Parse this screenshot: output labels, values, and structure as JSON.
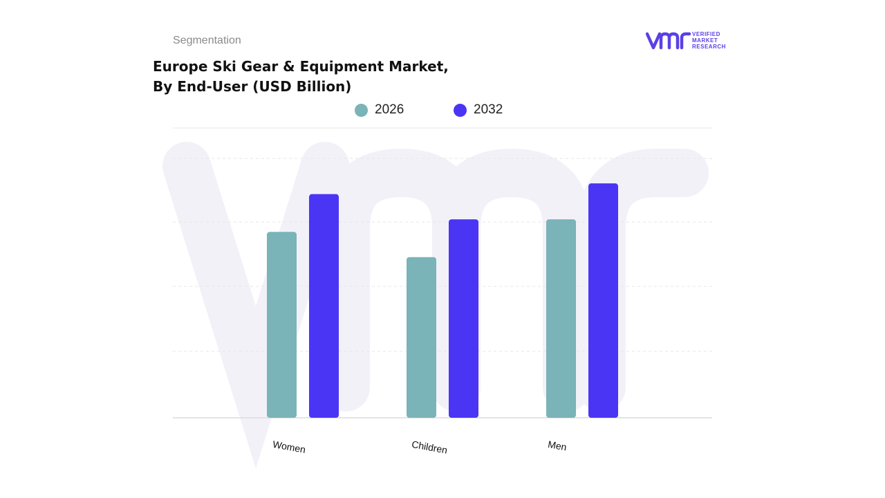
{
  "header": {
    "segment_label": "Segmentation",
    "title_line1": "Europe Ski Gear & Equipment Market,",
    "title_line2": "By End-User (USD Billion)"
  },
  "logo": {
    "mark": "vmr",
    "line1": "VERIFIED",
    "line2": "MARKET",
    "line3": "RESEARCH"
  },
  "colors": {
    "series_2026": "#7ab3b8",
    "series_2032": "#4a35f5",
    "gridline": "#e6e6e6",
    "logo": "#5b40e6"
  },
  "chart_data": {
    "type": "bar",
    "categories": [
      "Women",
      "Children",
      "Men"
    ],
    "series": [
      {
        "name": "2026",
        "values": [
          2.95,
          2.55,
          3.15
        ]
      },
      {
        "name": "2032",
        "values": [
          3.55,
          3.15,
          3.72
        ]
      }
    ],
    "ylim": [
      0,
      4.6
    ],
    "grid": true,
    "legend_position": "top-center"
  }
}
